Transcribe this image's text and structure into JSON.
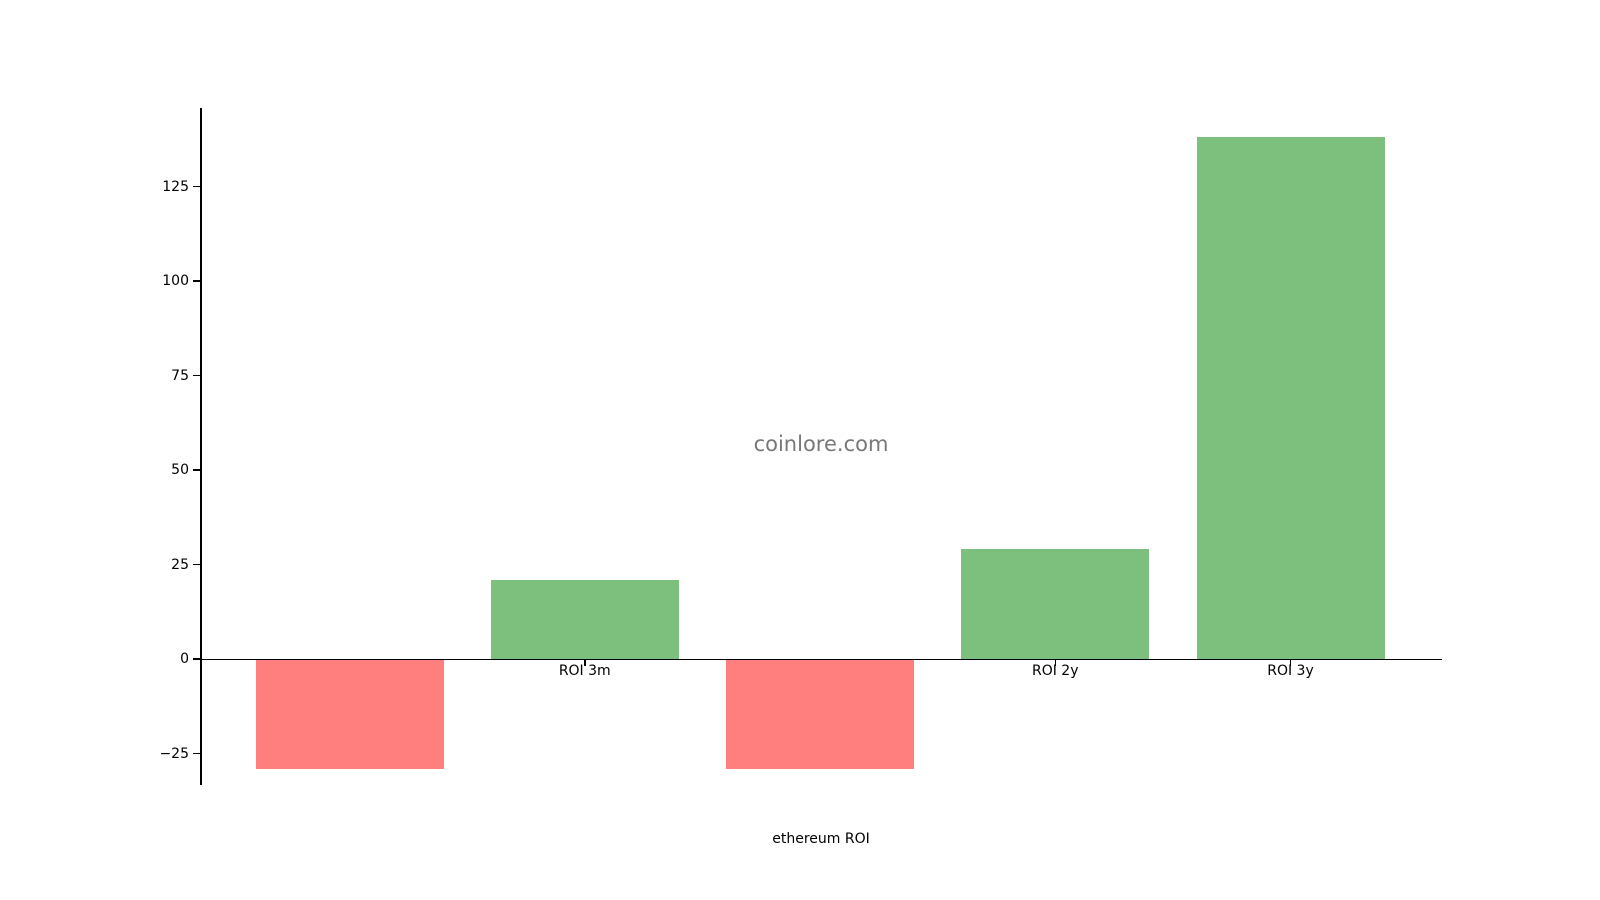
{
  "page": {
    "background_color": "#ffffff"
  },
  "watermark": {
    "text": "coinlore.com",
    "color": "#787878"
  },
  "chart_data": {
    "type": "bar",
    "title": "",
    "xlabel": "ethereum ROI",
    "ylabel": "",
    "categories": [
      "",
      "ROI 3m",
      "",
      "ROI 2y",
      "ROI 3y"
    ],
    "values": [
      -29,
      21,
      -29,
      29,
      138
    ],
    "positive_color": "#7dbf7d",
    "negative_color": "#ff7f7f",
    "axis_color": "#000000",
    "yticks": [
      125,
      100,
      75,
      50,
      25,
      0,
      -25
    ],
    "ylim": [
      -33,
      146
    ],
    "grid": false,
    "legend": "none",
    "notes": "bars for hidden categories cover their x tick labels"
  }
}
